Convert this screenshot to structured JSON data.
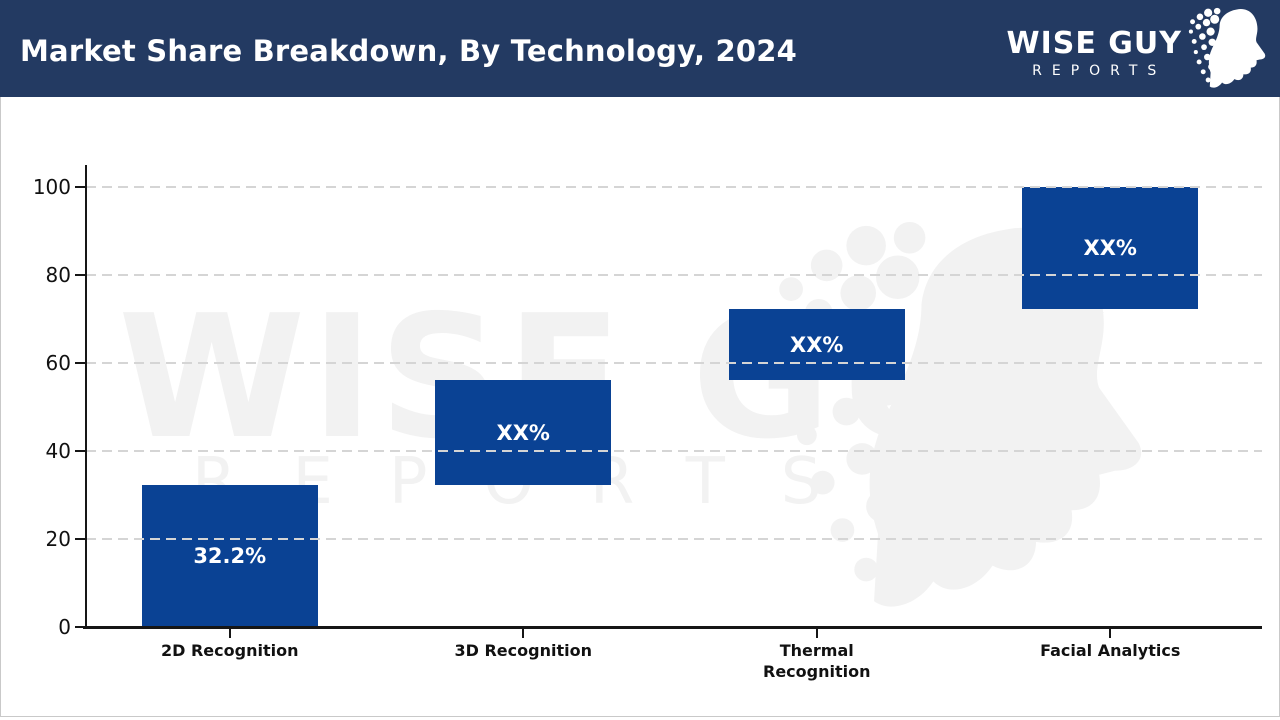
{
  "header": {
    "title": "Market Share Breakdown, By Technology, 2024",
    "logo": {
      "wordmark": "WISE GUY",
      "subtitle": "REPORTS"
    }
  },
  "watermark": {
    "wordmark": "WISE GUY",
    "subtitle": "REPORTS"
  },
  "chart_data": {
    "type": "bar",
    "subtype": "floating-segment breakdown (waterfall-style market share)",
    "title": "Market Share Breakdown, By Technology, 2024",
    "categories": [
      "2D Recognition",
      "3D Recognition",
      "Thermal Recognition",
      "Facial Analytics"
    ],
    "segments": [
      {
        "category": "2D Recognition",
        "start": 0,
        "end": 32.2,
        "label": "32.2%"
      },
      {
        "category": "3D Recognition",
        "start": 32.2,
        "end": 56.2,
        "label": "XX%"
      },
      {
        "category": "Thermal Recognition",
        "start": 56.2,
        "end": 72.2,
        "label": "XX%"
      },
      {
        "category": "Facial Analytics",
        "start": 72.2,
        "end": 100,
        "label": "XX%"
      }
    ],
    "yticks": [
      0,
      20,
      40,
      60,
      80,
      100
    ],
    "ylim": [
      0,
      100
    ],
    "xlabel": "",
    "ylabel": "",
    "grid": "horizontal dashed gridlines at each y tick, drawn over bars",
    "legend": "none",
    "bar_color": "#0a4294"
  },
  "colors": {
    "header_bg": "#233a62",
    "bar": "#0a4294",
    "gridline": "#d5d5d5",
    "axis": "#161616",
    "watermark": "#f2f2f2",
    "page_border": "#c9c9c9"
  }
}
